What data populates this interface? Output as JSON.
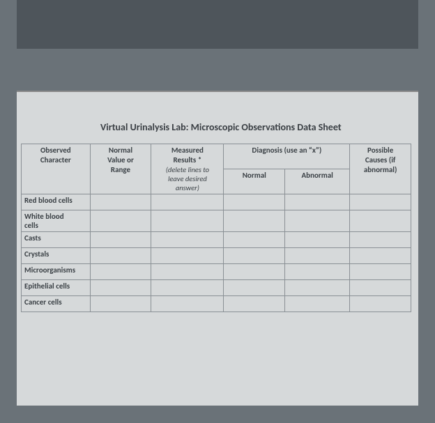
{
  "title": "Virtual Urinalysis Lab: Microscopic Observations Data Sheet",
  "headers": {
    "observed_char_l1": "Observed",
    "observed_char_l2": "Character",
    "normal_range_l1": "Normal",
    "normal_range_l2": "Value or",
    "normal_range_l3": "Range",
    "measured_l1": "Measured",
    "measured_l2": "Results *",
    "measured_sub_l1": "(delete lines to",
    "measured_sub_l2": "leave desired",
    "measured_sub_l3": "answer)",
    "diagnosis": "Diagnosis (use an “x”)",
    "diagnosis_normal": "Normal",
    "diagnosis_abnormal": "Abnormal",
    "possible_l1": "Possible",
    "possible_l2": "Causes (if",
    "possible_l3": "abnormal)"
  },
  "rows": {
    "r1": "Red blood cells",
    "r2_l1": "White blood",
    "r2_l2": "cells",
    "r3": "Casts",
    "r4": "Crystals",
    "r5": "Microorganisms",
    "r6": "Epithelial cells",
    "r7": "Cancer cells"
  },
  "style": {
    "background_outer": "#6a7278",
    "background_page": "#d6d9da",
    "border_color": "#8a9095",
    "text_color": "#3b4146",
    "title_fontsize": 14,
    "cell_fontsize": 11
  }
}
